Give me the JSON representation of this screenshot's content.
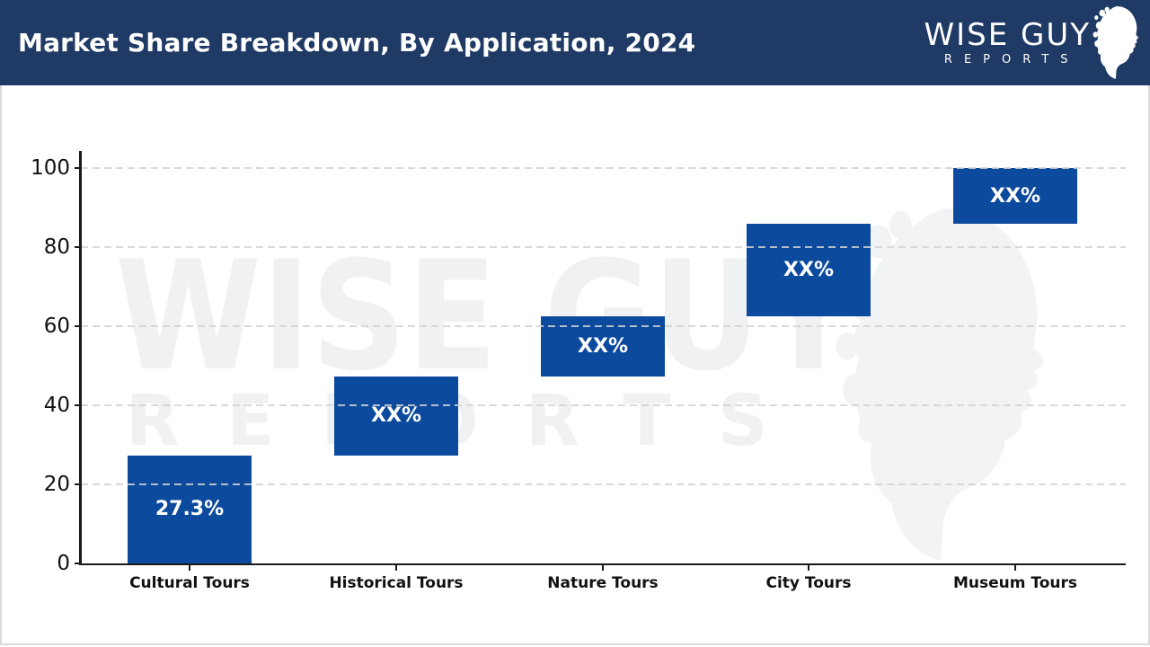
{
  "header": {
    "title": "Market Share Breakdown, By Application, 2024",
    "logo": {
      "name_top": "WISE GUY",
      "name_bottom": "REPORTS"
    }
  },
  "watermark": {
    "text_top": "WISE GUY",
    "text_bottom": "REPORTS"
  },
  "colors": {
    "header_bg": "#1f3a64",
    "bar_fill": "#0c4a9e",
    "axis": "#1a1a1a",
    "gridline": "#d2d2d2",
    "watermark": "#f0f1f3",
    "bar_label_text": "#ffffff"
  },
  "chart_data": {
    "type": "bar",
    "subtype": "waterfall-floating-bars",
    "title": "Market Share Breakdown, By Application, 2024",
    "xlabel": "",
    "ylabel": "",
    "categories": [
      "Cultural Tours",
      "Historical Tours",
      "Nature Tours",
      "City Tours",
      "Museum Tours"
    ],
    "segments": [
      {
        "category": "Cultural Tours",
        "start": 0,
        "end": 27.3,
        "label": "27.3%"
      },
      {
        "category": "Historical Tours",
        "start": 27.3,
        "end": 47.3,
        "label": "XX%"
      },
      {
        "category": "Nature Tours",
        "start": 47.3,
        "end": 62.4,
        "label": "XX%"
      },
      {
        "category": "City Tours",
        "start": 62.4,
        "end": 85.9,
        "label": "XX%"
      },
      {
        "category": "Museum Tours",
        "start": 85.9,
        "end": 100,
        "label": "XX%"
      }
    ],
    "yticks": [
      0,
      20,
      40,
      60,
      80,
      100
    ],
    "ylim": [
      0,
      104
    ],
    "grid": {
      "horizontal": true,
      "style": "dashed",
      "drawn_over_bars": true
    },
    "legend": "none",
    "bar_color": "#0c4a9e"
  }
}
